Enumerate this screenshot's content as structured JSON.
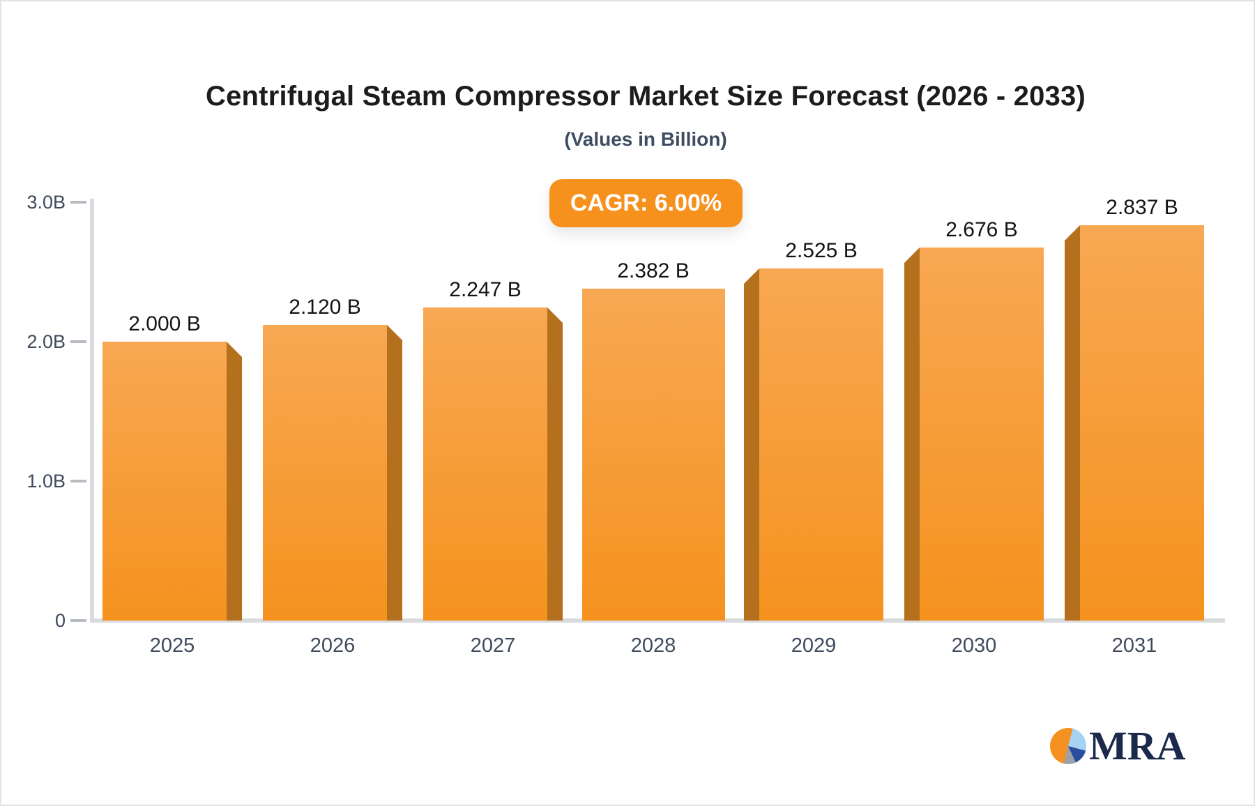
{
  "header": {
    "title": "Centrifugal Steam Compressor Market Size Forecast (2026 - 2033)",
    "subtitle": "(Values in Billion)"
  },
  "badge": {
    "label": "CAGR: 6.00%",
    "bg_color": "#F6911E",
    "text_color": "#FFFFFF"
  },
  "chart_data": {
    "type": "bar",
    "title": "Centrifugal Steam Compressor Market Size Forecast (2026 - 2033)",
    "subtitle": "(Values in Billion)",
    "unit": "Billion",
    "cagr": "6.00%",
    "categories": [
      "2025",
      "2026",
      "2027",
      "2028",
      "2029",
      "2030",
      "2031"
    ],
    "values": [
      2.0,
      2.12,
      2.247,
      2.382,
      2.525,
      2.676,
      2.837
    ],
    "value_labels": [
      "2.000 B",
      "2.120 B",
      "2.247 B",
      "2.382 B",
      "2.525 B",
      "2.676 B",
      "2.837 B"
    ],
    "ylim": [
      0,
      3.0
    ],
    "y_ticks": [
      {
        "value": 3.0,
        "label": "3.0B"
      },
      {
        "value": 2.0,
        "label": "2.0B"
      },
      {
        "value": 1.0,
        "label": "1.0B"
      },
      {
        "value": 0,
        "label": "0"
      }
    ],
    "grid": false,
    "legend": false,
    "colors": {
      "bar_face_top": "#F8A853",
      "bar_face_bottom": "#F5921E",
      "bar_side": "#B4701D",
      "axis_line": "#D9DADD",
      "tick_dash": "#B7BBC2",
      "axis_text": "#3E4A5B",
      "value_text": "#141414"
    }
  },
  "logo": {
    "text": "MRA",
    "text_color": "#1B2A4B",
    "pie_colors": {
      "orange": "#F59120",
      "light_blue": "#A6D3F3",
      "dark_blue": "#2B4D9E",
      "gray": "#9FA0A6"
    }
  }
}
